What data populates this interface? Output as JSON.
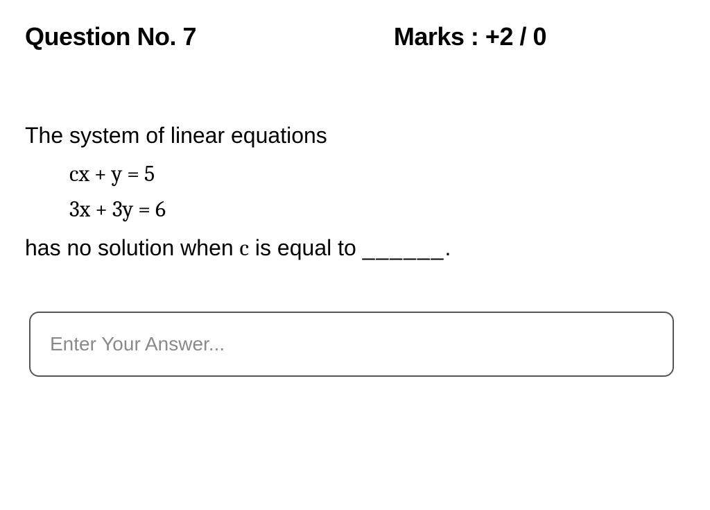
{
  "header": {
    "question_label": "Question No. 7",
    "marks_label": "Marks : +2 / 0"
  },
  "question": {
    "intro": "The system of linear equations",
    "equations": [
      "cx + y = 5",
      "3x + 3y = 6"
    ],
    "tail_pre": "has no solution when ",
    "tail_var": "c",
    "tail_post": " is equal to ",
    "blank": "______",
    "tail_end": "."
  },
  "answer": {
    "placeholder": "Enter Your Answer...",
    "value": ""
  },
  "style": {
    "background": "#ffffff",
    "text_color": "#000000",
    "border_color": "#555555",
    "placeholder_color": "#8a8a8a",
    "heading_fontsize": 36,
    "body_fontsize": 32,
    "input_fontsize": 28,
    "border_radius": 14
  }
}
